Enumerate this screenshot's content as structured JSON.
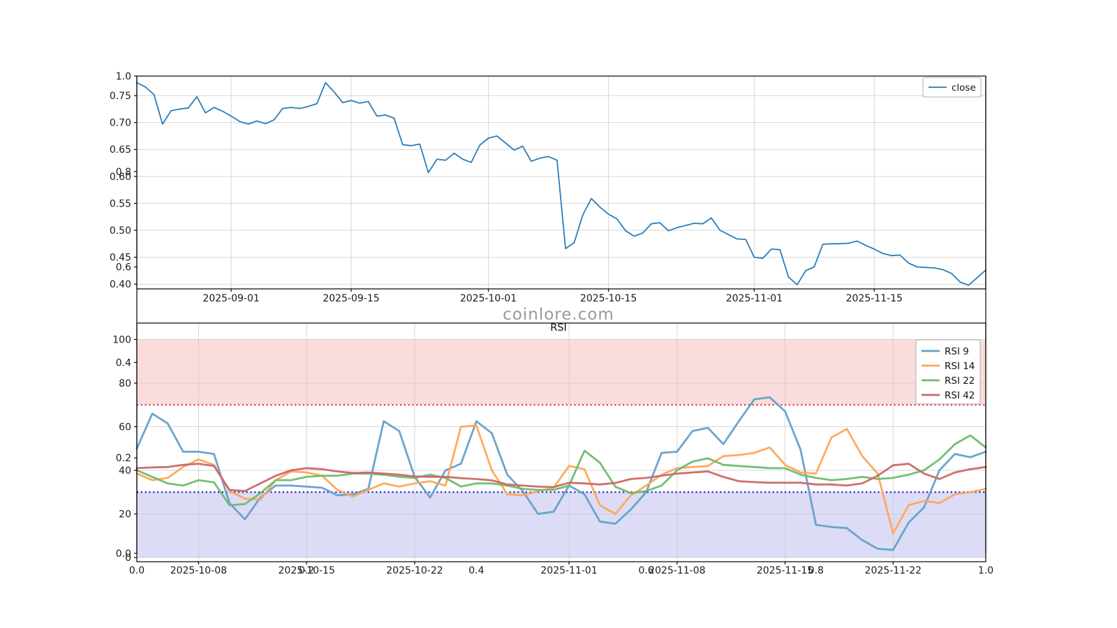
{
  "figure": {
    "watermark": "coinlore.com",
    "background": "#ffffff",
    "watermark_color": "#999999",
    "grid_color": "#c9c9c9",
    "spine_color": "#000000",
    "tick_text_color": "#1a1a1a"
  },
  "price_legend": {
    "label": "close"
  },
  "rsi_legend": {
    "labels": [
      "RSI 9",
      "RSI 14",
      "RSI 22",
      "RSI 42"
    ]
  },
  "rsi_title": "RSI",
  "overlay_axis": {
    "left": {
      "labels": [
        "1.0",
        "0.8",
        "0.6",
        "0.4",
        "0.2",
        "0.0"
      ],
      "fracs": [
        0,
        0.2,
        0.4,
        0.6,
        0.8,
        1.0
      ]
    },
    "bottom": {
      "labels": [
        "0.0",
        "0.2",
        "0.4",
        "0.6",
        "0.8",
        "1.0"
      ],
      "fracs": [
        0,
        0.2,
        0.4,
        0.6,
        0.8,
        1.0
      ]
    }
  },
  "chart_data": [
    {
      "id": "price",
      "type": "line",
      "title": "",
      "x_start": "2025-08-21",
      "x_end": "2025-11-28",
      "legend_position": "upper right",
      "grid": true,
      "ylim": [
        0.3912,
        0.7863
      ],
      "yticks": {
        "labels": [
          "0.75",
          "0.70",
          "0.65",
          "0.60",
          "0.55",
          "0.50",
          "0.45",
          "0.40"
        ],
        "values": [
          0.75,
          0.7,
          0.65,
          0.6,
          0.55,
          0.5,
          0.45,
          0.4
        ]
      },
      "xticks": {
        "labels": [
          "2025-09-01",
          "2025-09-15",
          "2025-10-01",
          "2025-10-15",
          "2025-11-01",
          "2025-11-15"
        ],
        "fracs": [
          0.1111,
          0.2525,
          0.4141,
          0.5556,
          0.7273,
          0.8687
        ]
      },
      "series": [
        {
          "name": "close",
          "color": "#1f77b4",
          "width": 1.8,
          "values": [
            0.774,
            0.766,
            0.752,
            0.697,
            0.722,
            0.725,
            0.727,
            0.748,
            0.718,
            0.728,
            0.721,
            0.712,
            0.702,
            0.697,
            0.703,
            0.698,
            0.705,
            0.726,
            0.728,
            0.726,
            0.73,
            0.735,
            0.774,
            0.757,
            0.737,
            0.741,
            0.736,
            0.739,
            0.712,
            0.714,
            0.708,
            0.659,
            0.657,
            0.66,
            0.607,
            0.632,
            0.63,
            0.643,
            0.632,
            0.626,
            0.658,
            0.671,
            0.675,
            0.662,
            0.649,
            0.656,
            0.628,
            0.634,
            0.637,
            0.63,
            0.466,
            0.477,
            0.528,
            0.559,
            0.543,
            0.53,
            0.521,
            0.499,
            0.489,
            0.495,
            0.512,
            0.514,
            0.499,
            0.505,
            0.509,
            0.513,
            0.512,
            0.523,
            0.5,
            0.492,
            0.484,
            0.483,
            0.45,
            0.448,
            0.465,
            0.464,
            0.413,
            0.399,
            0.425,
            0.432,
            0.474,
            0.475,
            0.475,
            0.476,
            0.48,
            0.472,
            0.465,
            0.457,
            0.453,
            0.454,
            0.439,
            0.432,
            0.431,
            0.43,
            0.427,
            0.42,
            0.404,
            0.398,
            0.412,
            0.426
          ]
        }
      ]
    },
    {
      "id": "rsi",
      "type": "line",
      "title": "RSI",
      "x_start": "2025-10-04",
      "x_end": "2025-11-28",
      "legend_position": "upper right",
      "grid": true,
      "ylim": [
        -1.92,
        107.52
      ],
      "overbought_level": 70,
      "oversold_level": 30,
      "bands": [
        {
          "from": 70,
          "to": 100,
          "color": "#fbdcdc"
        },
        {
          "from": 0,
          "to": 30,
          "color": "#dcdcf6"
        }
      ],
      "ref_lines": [
        {
          "value": 70,
          "color": "#e03b3b",
          "style": "dotted"
        },
        {
          "value": 30,
          "color": "#2222c8",
          "style": "dotted"
        }
      ],
      "yticks": {
        "labels": [
          "100",
          "80",
          "60",
          "40",
          "20",
          "0"
        ],
        "values": [
          100,
          80,
          60,
          40,
          20,
          0
        ]
      },
      "xticks": {
        "labels": [
          "2025-10-08",
          "2025-10-15",
          "2025-10-22",
          "2025-11-01",
          "2025-11-08",
          "2025-11-15",
          "2025-11-22"
        ],
        "fracs": [
          0.0727,
          0.2,
          0.3273,
          0.5091,
          0.6364,
          0.7636,
          0.8909
        ]
      },
      "series": [
        {
          "name": "RSI 9",
          "color": "#62a0ca",
          "width": 2.8,
          "values": [
            50,
            66,
            61.5,
            48.5,
            48.5,
            47.5,
            25,
            17.5,
            27.5,
            33,
            33,
            32.5,
            32,
            28.5,
            29,
            31.5,
            62.5,
            58,
            37,
            27.5,
            40,
            43,
            62.5,
            57,
            38,
            30.5,
            20,
            21,
            33,
            29,
            16.5,
            15.5,
            22,
            30,
            48,
            48.5,
            58,
            59.5,
            52,
            62.5,
            72.5,
            73.5,
            67,
            49.5,
            15,
            14,
            13.5,
            8,
            4,
            3.5,
            16,
            23,
            40,
            47.5,
            46,
            48.5
          ]
        },
        {
          "name": "RSI 14",
          "color": "#ffa556",
          "width": 2.8,
          "values": [
            38.5,
            35.5,
            36.5,
            41.5,
            45,
            42.5,
            30.5,
            27,
            26.5,
            35.5,
            39.5,
            39,
            37.5,
            31,
            28,
            31,
            34,
            32.5,
            34,
            35,
            33,
            60,
            60.5,
            40,
            29,
            28.5,
            30.5,
            32,
            42,
            40.5,
            24,
            20,
            28.5,
            33,
            38,
            41,
            41.5,
            42,
            46.5,
            47,
            48,
            50.5,
            42.5,
            39,
            38.5,
            55,
            59,
            46.5,
            38.5,
            11,
            24,
            26,
            25,
            29,
            30,
            31.5
          ]
        },
        {
          "name": "RSI 22",
          "color": "#6bbc6b",
          "width": 2.8,
          "values": [
            40,
            37,
            34,
            33,
            35.5,
            34.5,
            24,
            24.5,
            29.5,
            35.5,
            35.5,
            37,
            37.5,
            37.5,
            38.5,
            38.5,
            38,
            37,
            36.5,
            38,
            36.5,
            32.5,
            34,
            34,
            33,
            31.5,
            31,
            31,
            33,
            49,
            43.5,
            32.5,
            29.5,
            30.5,
            33,
            40,
            44,
            45.5,
            42.5,
            42,
            41.5,
            41,
            41,
            38,
            36.5,
            35.5,
            36,
            37,
            36,
            36.5,
            38,
            40,
            45,
            52,
            56,
            50.5
          ]
        },
        {
          "name": "RSI 42",
          "color": "#cd6666",
          "width": 2.8,
          "values": [
            41,
            41.3,
            41.5,
            42.5,
            43,
            42,
            31,
            30.5,
            34,
            37.5,
            40,
            41,
            40.5,
            39.5,
            38.8,
            39,
            38.5,
            38,
            37.2,
            37,
            37,
            36.4,
            36,
            35.4,
            33.5,
            33,
            32.5,
            32.3,
            34.3,
            34,
            33.5,
            34.2,
            36,
            36.5,
            37.5,
            38.5,
            39,
            39.5,
            37,
            35,
            34.6,
            34.3,
            34.3,
            34.3,
            33.5,
            33.5,
            33,
            34,
            37.5,
            42.3,
            43,
            38.5,
            36,
            39,
            40.5,
            41.5
          ]
        }
      ]
    }
  ]
}
